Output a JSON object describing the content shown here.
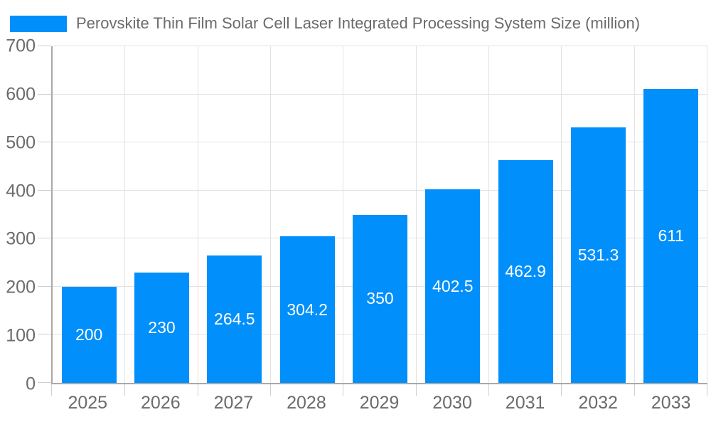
{
  "legend": {
    "label": "Perovskite Thin Film Solar Cell Laser Integrated Processing System Size (million)"
  },
  "chart_data": {
    "type": "bar",
    "title": "Perovskite Thin Film Solar Cell Laser Integrated Processing System Size (million)",
    "categories": [
      "2025",
      "2026",
      "2027",
      "2028",
      "2029",
      "2030",
      "2031",
      "2032",
      "2033"
    ],
    "values": [
      200,
      230,
      264.5,
      304.2,
      350,
      402.5,
      462.9,
      531.3,
      611
    ],
    "value_labels": [
      "200",
      "230",
      "264.5",
      "304.2",
      "350",
      "402.5",
      "462.9",
      "531.3",
      "611"
    ],
    "xlabel": "",
    "ylabel": "",
    "ylim": [
      0,
      700
    ],
    "yticks": [
      0,
      100,
      200,
      300,
      400,
      500,
      600,
      700
    ],
    "grid": true,
    "legend_position": "top-left",
    "bar_width_fraction": 0.75,
    "colors": {
      "bar": "#008ffb",
      "bar_value_label": "#ffffff",
      "axis_text": "#6b6b6b",
      "axis_line": "#a9a9a9",
      "gridline": "#e2e2e2",
      "tick_mark": "#cfcfcf",
      "background": "#ffffff"
    }
  }
}
